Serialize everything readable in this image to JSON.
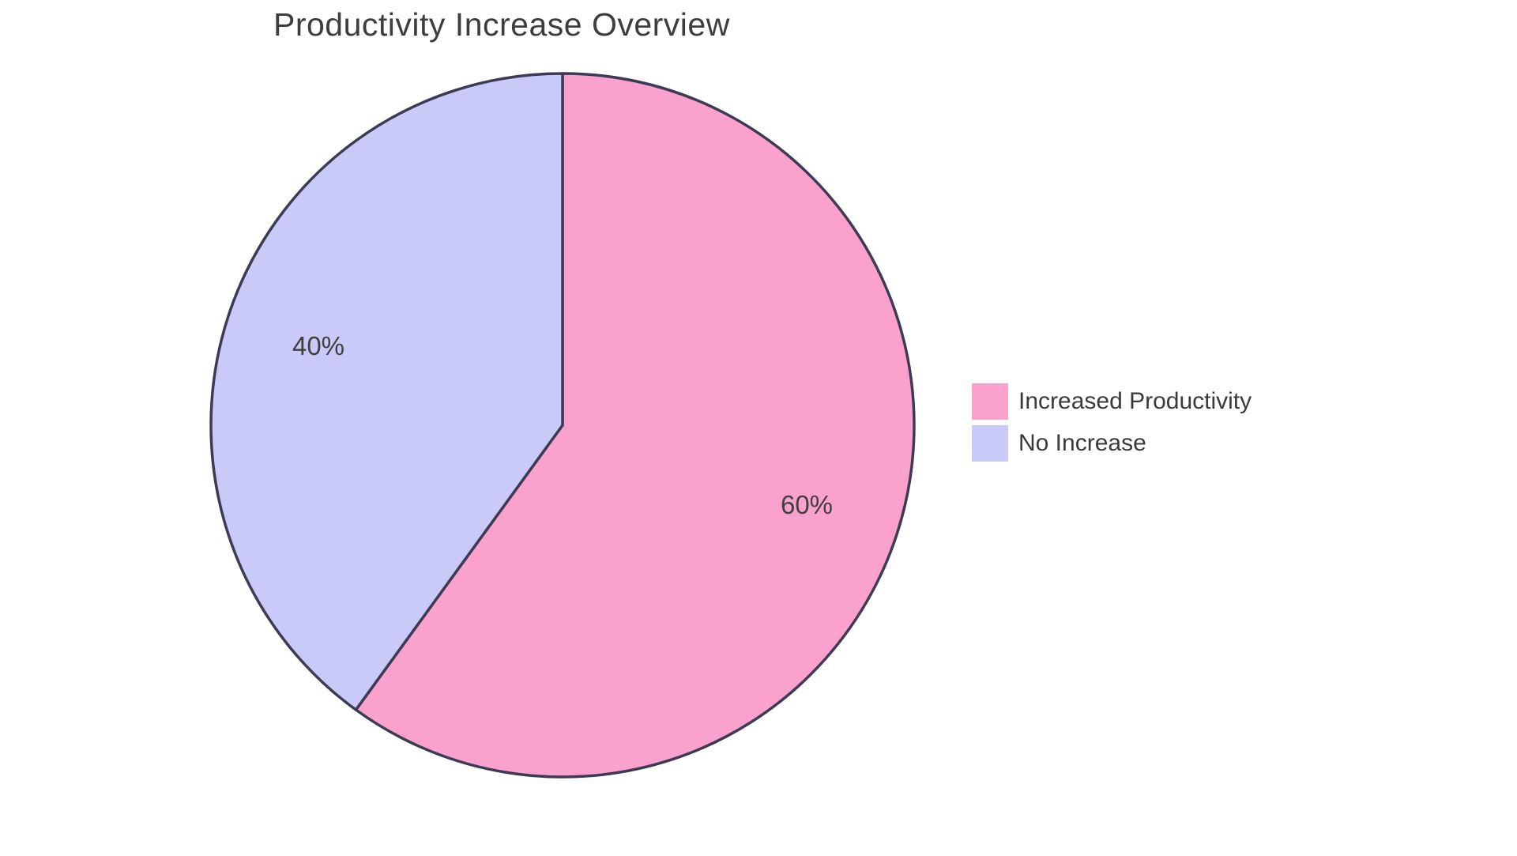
{
  "chart_data": {
    "type": "pie",
    "title": "Productivity Increase Overview",
    "labels": [
      "Increased Productivity",
      "No Increase"
    ],
    "values": [
      60,
      40
    ],
    "percent_labels": [
      "60%",
      "40%"
    ],
    "colors": [
      "#FBA1CE",
      "#CACAF8"
    ],
    "slice_border_color": "#3D3B54",
    "text_color": "#3F3F3F",
    "start_angle_deg": 0,
    "direction": "clockwise",
    "legend_position": "right",
    "background_color": "#FFFFFF",
    "legend": [
      {
        "label": "Increased Productivity",
        "color": "#FBA1CE"
      },
      {
        "label": "No Increase",
        "color": "#CACAF8"
      }
    ]
  }
}
